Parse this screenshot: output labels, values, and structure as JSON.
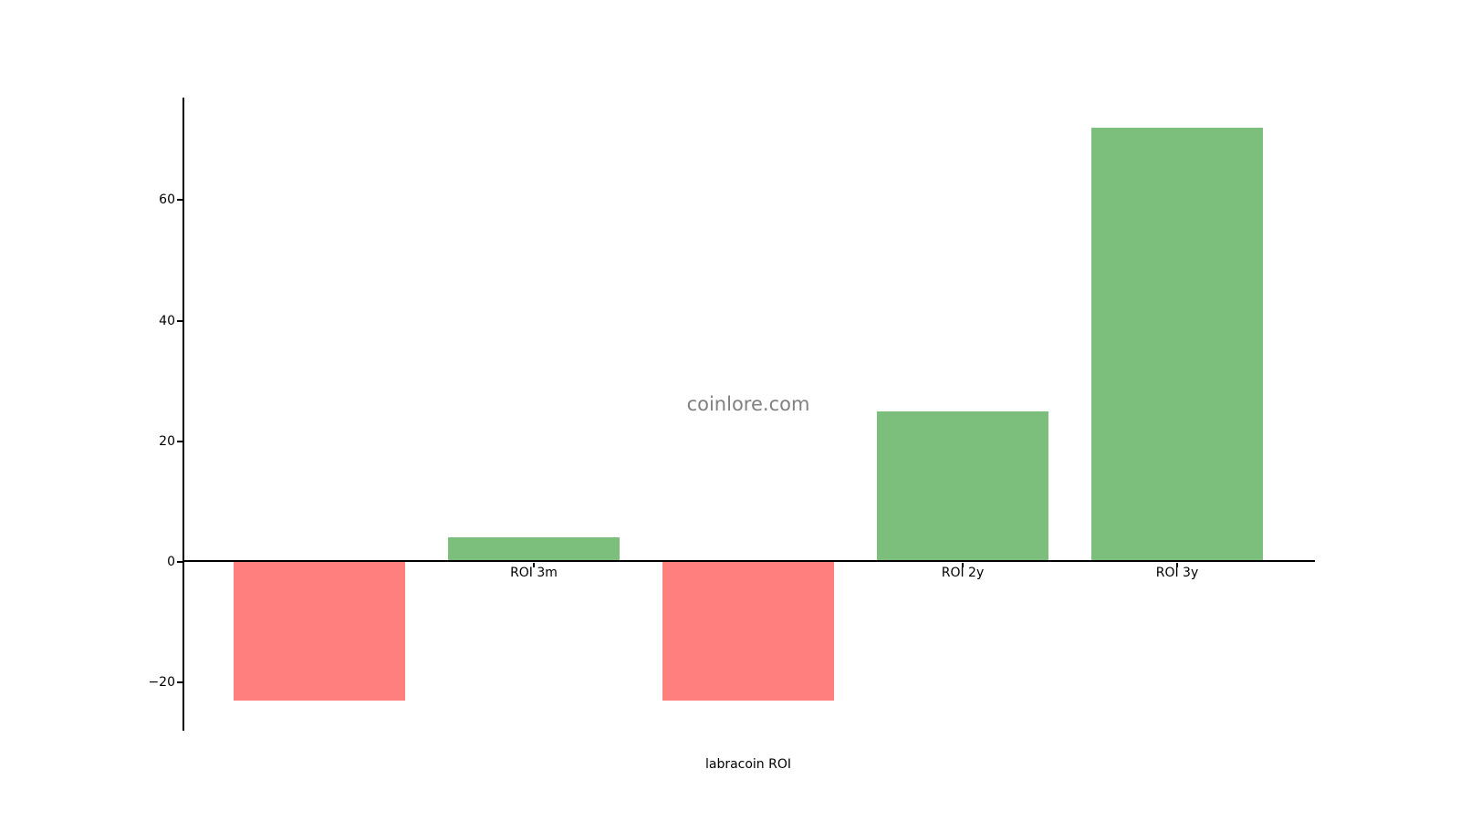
{
  "chart_data": {
    "type": "bar",
    "title": "labracoin ROI",
    "watermark": "coinlore.com",
    "categories": [
      "",
      "ROI 3m",
      "",
      "ROI 2y",
      "ROI 3y"
    ],
    "values": [
      -23,
      4,
      -23,
      25,
      72
    ],
    "series": [
      {
        "name": "labracoin ROI",
        "values": [
          -23,
          4,
          -23,
          25,
          72
        ]
      }
    ],
    "bar_colors": {
      "positive": "#7cbe7c",
      "negative": "#ff7f7f"
    },
    "axis_color": "#000000",
    "watermark_color": "#808080",
    "text_color": "#000000",
    "yticks": [
      60,
      40,
      20,
      0,
      -20
    ],
    "ylim": [
      -28,
      77
    ],
    "grid": false,
    "legend": false,
    "x_axis_position": "zero",
    "xlabel": "labracoin ROI",
    "ylabel": ""
  }
}
